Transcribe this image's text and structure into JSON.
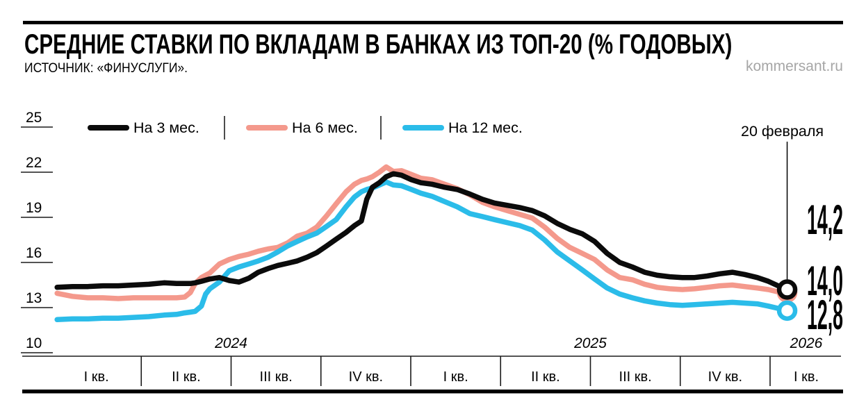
{
  "header": {
    "title": "СРЕДНИЕ СТАВКИ ПО ВКЛАДАМ В БАНКАХ ИЗ ТОП-20 (% ГОДОВЫХ)",
    "source": "ИСТОЧНИК: «ФИНУСЛУГИ».",
    "watermark": "kommersant.ru"
  },
  "chart_data": {
    "type": "line",
    "title": "Средние ставки по вкладам в банках из топ-20 (% годовых)",
    "ylabel": "% годовых",
    "ylim": [
      10,
      25
    ],
    "yticks": [
      25,
      22,
      19,
      16,
      13,
      10
    ],
    "grid": "ticks-left-only",
    "legend_position": "top",
    "x_unit": "months since January 2024 (0 = 01.01.2024)",
    "x_axis": {
      "quarters": [
        "I кв.",
        "II кв.",
        "III кв.",
        "IV кв.",
        "I кв.",
        "II кв.",
        "III кв.",
        "IV кв.",
        "I кв."
      ],
      "years": [
        "2024",
        "2025",
        "2026"
      ]
    },
    "annotation": {
      "text": "20 февраля",
      "x": 24.57
    },
    "series": [
      {
        "id": "6m",
        "name": "На 6 мес.",
        "color": "#f4998c",
        "end_label": "14,0",
        "end_value": 14.0,
        "points": [
          [
            0.19,
            13.95
          ],
          [
            0.7,
            13.75
          ],
          [
            1.21,
            13.65
          ],
          [
            1.72,
            13.65
          ],
          [
            2.23,
            13.6
          ],
          [
            2.74,
            13.65
          ],
          [
            3.25,
            13.65
          ],
          [
            3.76,
            13.65
          ],
          [
            4.18,
            13.65
          ],
          [
            4.45,
            13.7
          ],
          [
            4.64,
            14.0
          ],
          [
            4.8,
            14.6
          ],
          [
            5.01,
            15.0
          ],
          [
            5.29,
            15.3
          ],
          [
            5.61,
            15.9
          ],
          [
            5.94,
            16.2
          ],
          [
            6.26,
            16.4
          ],
          [
            6.59,
            16.55
          ],
          [
            6.91,
            16.75
          ],
          [
            7.24,
            16.9
          ],
          [
            7.56,
            17.0
          ],
          [
            7.89,
            17.3
          ],
          [
            8.21,
            17.75
          ],
          [
            8.54,
            17.95
          ],
          [
            8.86,
            18.35
          ],
          [
            9.19,
            19.1
          ],
          [
            9.51,
            19.9
          ],
          [
            9.84,
            20.7
          ],
          [
            10.12,
            21.2
          ],
          [
            10.35,
            21.45
          ],
          [
            10.53,
            21.55
          ],
          [
            10.72,
            21.7
          ],
          [
            10.95,
            22.0
          ],
          [
            11.18,
            22.35
          ],
          [
            11.42,
            22.05
          ],
          [
            11.69,
            22.1
          ],
          [
            12.02,
            21.85
          ],
          [
            12.34,
            21.6
          ],
          [
            12.71,
            21.5
          ],
          [
            13.13,
            21.2
          ],
          [
            13.55,
            20.9
          ],
          [
            13.97,
            20.5
          ],
          [
            14.39,
            20.0
          ],
          [
            14.8,
            19.7
          ],
          [
            15.22,
            19.45
          ],
          [
            15.64,
            19.2
          ],
          [
            16.06,
            18.95
          ],
          [
            16.47,
            18.35
          ],
          [
            16.89,
            17.6
          ],
          [
            17.31,
            17.0
          ],
          [
            17.73,
            16.6
          ],
          [
            18.14,
            16.2
          ],
          [
            18.56,
            15.5
          ],
          [
            18.98,
            15.0
          ],
          [
            19.4,
            14.85
          ],
          [
            19.81,
            14.55
          ],
          [
            20.23,
            14.35
          ],
          [
            20.65,
            14.25
          ],
          [
            21.07,
            14.2
          ],
          [
            21.48,
            14.25
          ],
          [
            21.9,
            14.35
          ],
          [
            22.32,
            14.45
          ],
          [
            22.74,
            14.5
          ],
          [
            23.15,
            14.4
          ],
          [
            23.57,
            14.3
          ],
          [
            23.94,
            14.2
          ],
          [
            24.27,
            14.05
          ],
          [
            24.57,
            14.0
          ]
        ]
      },
      {
        "id": "12m",
        "name": "На 12 мес.",
        "color": "#2bbce9",
        "end_label": "12,8",
        "end_value": 12.8,
        "points": [
          [
            0.19,
            12.2
          ],
          [
            0.7,
            12.25
          ],
          [
            1.21,
            12.25
          ],
          [
            1.72,
            12.3
          ],
          [
            2.23,
            12.3
          ],
          [
            2.74,
            12.35
          ],
          [
            3.25,
            12.4
          ],
          [
            3.76,
            12.5
          ],
          [
            4.18,
            12.55
          ],
          [
            4.45,
            12.65
          ],
          [
            4.64,
            12.7
          ],
          [
            4.8,
            12.75
          ],
          [
            5.01,
            13.1
          ],
          [
            5.15,
            13.9
          ],
          [
            5.29,
            14.25
          ],
          [
            5.61,
            14.7
          ],
          [
            5.94,
            15.45
          ],
          [
            6.26,
            15.7
          ],
          [
            6.59,
            15.9
          ],
          [
            6.91,
            16.1
          ],
          [
            7.24,
            16.35
          ],
          [
            7.56,
            16.7
          ],
          [
            7.89,
            17.1
          ],
          [
            8.21,
            17.4
          ],
          [
            8.54,
            17.7
          ],
          [
            8.86,
            17.95
          ],
          [
            9.19,
            18.4
          ],
          [
            9.51,
            18.85
          ],
          [
            9.84,
            19.7
          ],
          [
            10.12,
            20.35
          ],
          [
            10.35,
            20.7
          ],
          [
            10.53,
            20.85
          ],
          [
            10.72,
            20.95
          ],
          [
            10.95,
            21.15
          ],
          [
            11.18,
            21.35
          ],
          [
            11.42,
            21.15
          ],
          [
            11.69,
            21.1
          ],
          [
            12.02,
            20.85
          ],
          [
            12.34,
            20.6
          ],
          [
            12.71,
            20.4
          ],
          [
            13.13,
            20.05
          ],
          [
            13.55,
            19.7
          ],
          [
            13.97,
            19.25
          ],
          [
            14.39,
            19.05
          ],
          [
            14.8,
            18.85
          ],
          [
            15.22,
            18.65
          ],
          [
            15.64,
            18.45
          ],
          [
            16.06,
            18.15
          ],
          [
            16.47,
            17.5
          ],
          [
            16.89,
            16.7
          ],
          [
            17.31,
            16.1
          ],
          [
            17.73,
            15.5
          ],
          [
            18.14,
            14.9
          ],
          [
            18.56,
            14.3
          ],
          [
            18.98,
            13.9
          ],
          [
            19.4,
            13.65
          ],
          [
            19.81,
            13.45
          ],
          [
            20.23,
            13.3
          ],
          [
            20.65,
            13.2
          ],
          [
            21.07,
            13.15
          ],
          [
            21.48,
            13.2
          ],
          [
            21.9,
            13.25
          ],
          [
            22.32,
            13.3
          ],
          [
            22.74,
            13.35
          ],
          [
            23.15,
            13.3
          ],
          [
            23.57,
            13.25
          ],
          [
            23.94,
            13.1
          ],
          [
            24.27,
            12.95
          ],
          [
            24.57,
            12.8
          ]
        ]
      },
      {
        "id": "3m",
        "name": "На 3 мес.",
        "color": "#0b0b0b",
        "end_label": "14,2",
        "end_value": 14.2,
        "points": [
          [
            0.19,
            14.35
          ],
          [
            0.7,
            14.4
          ],
          [
            1.21,
            14.4
          ],
          [
            1.72,
            14.45
          ],
          [
            2.23,
            14.45
          ],
          [
            2.74,
            14.5
          ],
          [
            3.25,
            14.55
          ],
          [
            3.76,
            14.65
          ],
          [
            4.18,
            14.6
          ],
          [
            4.45,
            14.6
          ],
          [
            4.64,
            14.6
          ],
          [
            4.8,
            14.65
          ],
          [
            5.01,
            14.75
          ],
          [
            5.29,
            14.9
          ],
          [
            5.61,
            15.0
          ],
          [
            5.94,
            14.8
          ],
          [
            6.26,
            14.7
          ],
          [
            6.59,
            14.95
          ],
          [
            6.91,
            15.35
          ],
          [
            7.24,
            15.6
          ],
          [
            7.56,
            15.8
          ],
          [
            7.89,
            15.95
          ],
          [
            8.21,
            16.1
          ],
          [
            8.54,
            16.35
          ],
          [
            8.86,
            16.65
          ],
          [
            9.19,
            17.1
          ],
          [
            9.51,
            17.55
          ],
          [
            9.84,
            18.0
          ],
          [
            10.12,
            18.45
          ],
          [
            10.35,
            18.75
          ],
          [
            10.53,
            20.2
          ],
          [
            10.72,
            21.0
          ],
          [
            10.95,
            21.3
          ],
          [
            11.18,
            21.7
          ],
          [
            11.42,
            21.9
          ],
          [
            11.69,
            21.8
          ],
          [
            12.02,
            21.5
          ],
          [
            12.34,
            21.3
          ],
          [
            12.71,
            21.2
          ],
          [
            13.13,
            21.0
          ],
          [
            13.55,
            20.85
          ],
          [
            13.97,
            20.55
          ],
          [
            14.39,
            20.2
          ],
          [
            14.8,
            19.95
          ],
          [
            15.22,
            19.8
          ],
          [
            15.64,
            19.65
          ],
          [
            16.06,
            19.45
          ],
          [
            16.47,
            19.1
          ],
          [
            16.89,
            18.6
          ],
          [
            17.31,
            18.2
          ],
          [
            17.73,
            17.9
          ],
          [
            18.14,
            17.4
          ],
          [
            18.56,
            16.6
          ],
          [
            18.98,
            16.0
          ],
          [
            19.4,
            15.7
          ],
          [
            19.81,
            15.35
          ],
          [
            20.23,
            15.15
          ],
          [
            20.65,
            15.05
          ],
          [
            21.07,
            15.0
          ],
          [
            21.48,
            15.0
          ],
          [
            21.9,
            15.1
          ],
          [
            22.32,
            15.25
          ],
          [
            22.74,
            15.35
          ],
          [
            23.15,
            15.2
          ],
          [
            23.57,
            15.0
          ],
          [
            23.94,
            14.75
          ],
          [
            24.27,
            14.45
          ],
          [
            24.57,
            14.2
          ]
        ]
      }
    ],
    "legend_order": [
      "3m",
      "6m",
      "12m"
    ]
  }
}
